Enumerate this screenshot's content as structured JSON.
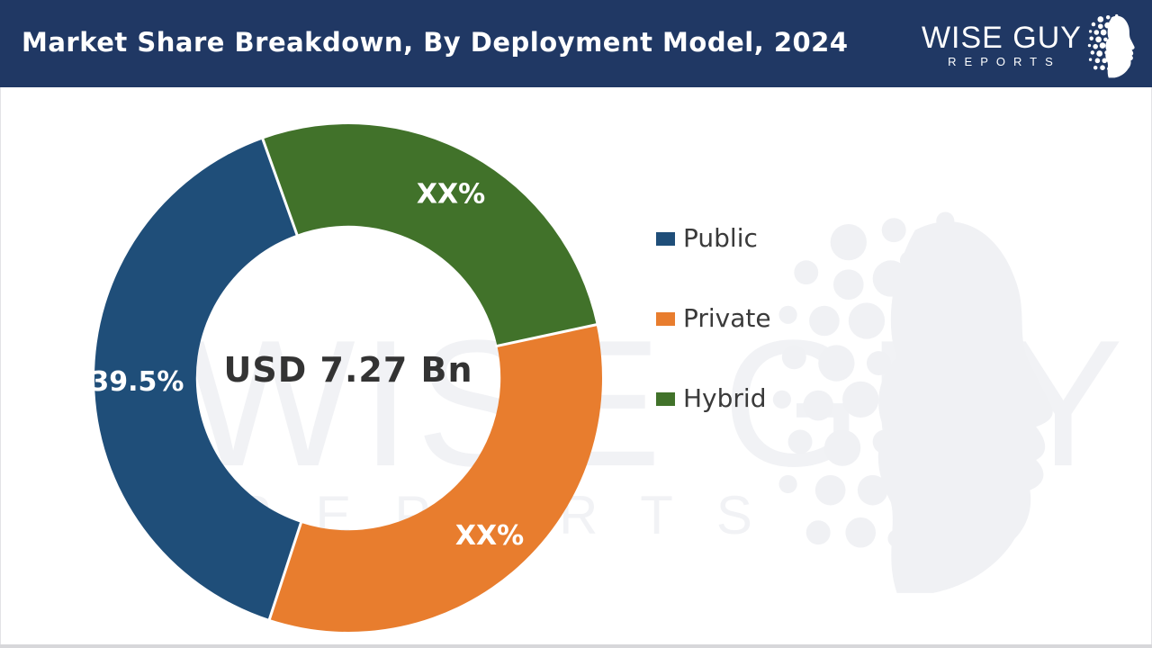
{
  "header": {
    "title": "Market Share Breakdown, By Deployment Model, 2024",
    "logo": {
      "line1": "WISE GUY",
      "line2": "REPORTS"
    }
  },
  "watermark": {
    "line1": "WISE GUY",
    "line2": "REPORTS"
  },
  "chart_data": {
    "type": "donut",
    "title": "Market Share Breakdown, By Deployment Model, 2024",
    "center_label": "USD 7.27 Bn",
    "start_angle_deg": -19.7,
    "inner_radius_ratio": 0.6,
    "segments": [
      {
        "name": "Hybrid",
        "value": 27.1,
        "display_label": "XX%",
        "color": "#41722A"
      },
      {
        "name": "Private",
        "value": 33.4,
        "display_label": "XX%",
        "color": "#E87D2E"
      },
      {
        "name": "Public",
        "value": 39.5,
        "display_label": "39.5%",
        "color": "#1F4E79"
      }
    ],
    "legend": [
      {
        "label": "Public",
        "color": "#1F4E79"
      },
      {
        "label": "Private",
        "color": "#E87D2E"
      },
      {
        "label": "Hybrid",
        "color": "#41722A"
      }
    ],
    "legend_position": "right",
    "slice_label_color": "#FFFFFF"
  },
  "colors": {
    "header_bg": "#203864",
    "center_text": "#333333",
    "legend_text": "#3A3A3A",
    "watermark": "#F0F1F4",
    "footer_line": "#D7D7DA"
  }
}
